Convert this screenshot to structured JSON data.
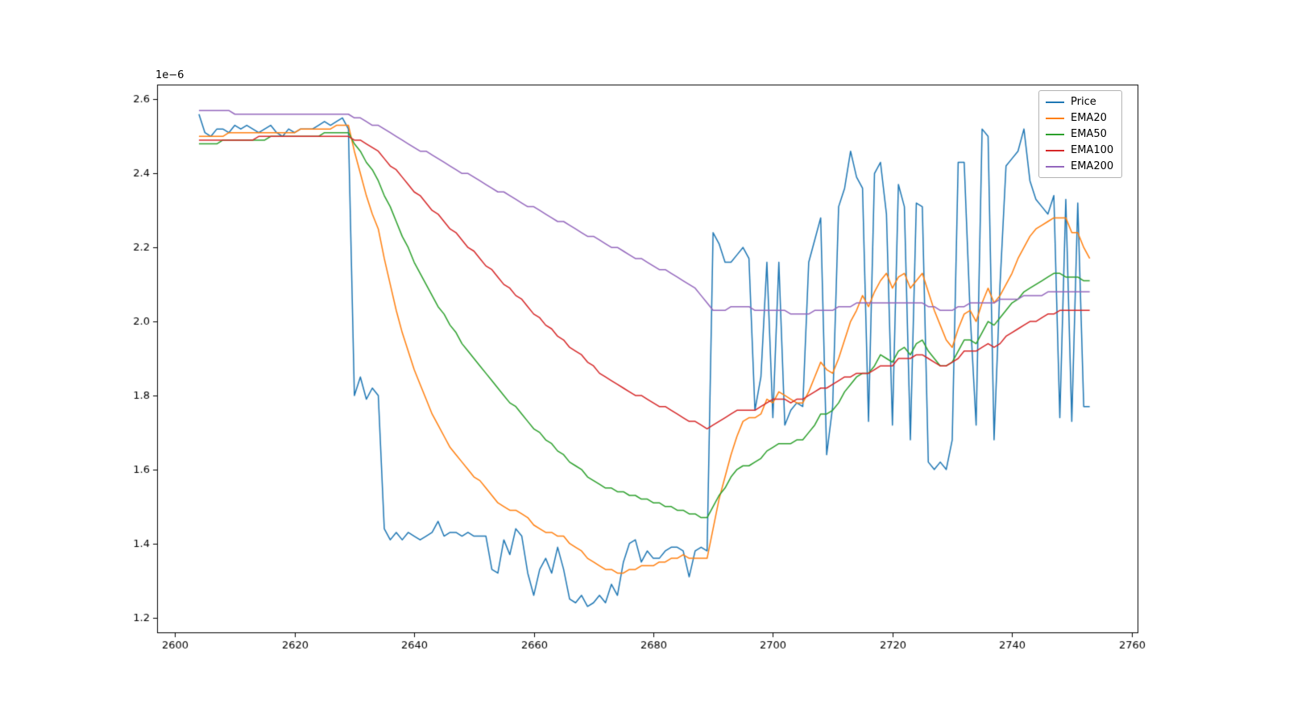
{
  "figure": {
    "background": "#ffffff"
  },
  "chart_data": {
    "type": "line",
    "title": "",
    "xlabel": "",
    "ylabel": "",
    "offset_text": "1e−6",
    "grid": false,
    "legend_position": "upper right",
    "legend_labels": [
      "Price",
      "EMA20",
      "EMA50",
      "EMA100",
      "EMA200"
    ],
    "x_start": 2604,
    "x_step": 1,
    "xlim": [
      2597,
      2761
    ],
    "ylim": [
      1.16,
      2.64
    ],
    "x_ticks": [
      2600,
      2620,
      2640,
      2660,
      2680,
      2700,
      2720,
      2740,
      2760
    ],
    "y_ticks": [
      1.2,
      1.4,
      1.6,
      1.8,
      2.0,
      2.2,
      2.4,
      2.6
    ],
    "y_scale_note": "values are ×1e-6",
    "series": [
      {
        "name": "Price",
        "color": "#1f77b4",
        "values": [
          2.56,
          2.51,
          2.5,
          2.52,
          2.52,
          2.51,
          2.53,
          2.52,
          2.53,
          2.52,
          2.51,
          2.52,
          2.53,
          2.51,
          2.5,
          2.52,
          2.51,
          2.52,
          2.52,
          2.52,
          2.53,
          2.54,
          2.53,
          2.54,
          2.55,
          2.52,
          1.8,
          1.85,
          1.79,
          1.82,
          1.8,
          1.44,
          1.41,
          1.43,
          1.41,
          1.43,
          1.42,
          1.41,
          1.42,
          1.43,
          1.46,
          1.42,
          1.43,
          1.43,
          1.42,
          1.43,
          1.42,
          1.42,
          1.42,
          1.33,
          1.32,
          1.41,
          1.37,
          1.44,
          1.42,
          1.32,
          1.26,
          1.33,
          1.36,
          1.32,
          1.39,
          1.33,
          1.25,
          1.24,
          1.26,
          1.23,
          1.24,
          1.26,
          1.24,
          1.29,
          1.26,
          1.35,
          1.4,
          1.41,
          1.35,
          1.38,
          1.36,
          1.36,
          1.38,
          1.39,
          1.39,
          1.38,
          1.31,
          1.38,
          1.39,
          1.38,
          2.24,
          2.21,
          2.16,
          2.16,
          2.18,
          2.2,
          2.17,
          1.76,
          1.85,
          2.16,
          1.74,
          2.16,
          1.72,
          1.76,
          1.78,
          1.77,
          2.16,
          2.22,
          2.28,
          1.64,
          1.77,
          2.31,
          2.36,
          2.46,
          2.39,
          2.36,
          1.73,
          2.4,
          2.43,
          2.29,
          1.72,
          2.37,
          2.31,
          1.68,
          2.32,
          2.31,
          1.62,
          1.6,
          1.62,
          1.6,
          1.68,
          2.43,
          2.43,
          2.02,
          1.72,
          2.52,
          2.5,
          1.68,
          2.1,
          2.42,
          2.44,
          2.46,
          2.52,
          2.38,
          2.33,
          2.31,
          2.29,
          2.34,
          1.74,
          2.33,
          1.73,
          2.32,
          1.77,
          1.77
        ]
      },
      {
        "name": "EMA20",
        "color": "#ff7f0e",
        "values": [
          2.5,
          2.5,
          2.5,
          2.5,
          2.5,
          2.51,
          2.51,
          2.51,
          2.51,
          2.51,
          2.51,
          2.51,
          2.51,
          2.51,
          2.51,
          2.51,
          2.51,
          2.52,
          2.52,
          2.52,
          2.52,
          2.52,
          2.52,
          2.53,
          2.53,
          2.53,
          2.46,
          2.4,
          2.34,
          2.29,
          2.25,
          2.17,
          2.1,
          2.03,
          1.97,
          1.92,
          1.87,
          1.83,
          1.79,
          1.75,
          1.72,
          1.69,
          1.66,
          1.64,
          1.62,
          1.6,
          1.58,
          1.57,
          1.55,
          1.53,
          1.51,
          1.5,
          1.49,
          1.49,
          1.48,
          1.47,
          1.45,
          1.44,
          1.43,
          1.43,
          1.42,
          1.42,
          1.4,
          1.39,
          1.38,
          1.36,
          1.35,
          1.34,
          1.33,
          1.33,
          1.32,
          1.32,
          1.33,
          1.33,
          1.34,
          1.34,
          1.34,
          1.35,
          1.35,
          1.36,
          1.36,
          1.37,
          1.36,
          1.36,
          1.36,
          1.36,
          1.44,
          1.52,
          1.58,
          1.64,
          1.69,
          1.73,
          1.74,
          1.74,
          1.75,
          1.79,
          1.78,
          1.81,
          1.8,
          1.79,
          1.78,
          1.78,
          1.81,
          1.85,
          1.89,
          1.87,
          1.86,
          1.9,
          1.95,
          2.0,
          2.03,
          2.07,
          2.04,
          2.08,
          2.11,
          2.13,
          2.09,
          2.12,
          2.13,
          2.09,
          2.11,
          2.13,
          2.08,
          2.03,
          1.99,
          1.95,
          1.93,
          1.98,
          2.02,
          2.03,
          2.0,
          2.05,
          2.09,
          2.05,
          2.07,
          2.1,
          2.13,
          2.17,
          2.2,
          2.23,
          2.25,
          2.26,
          2.27,
          2.28,
          2.28,
          2.28,
          2.24,
          2.24,
          2.2,
          2.17
        ]
      },
      {
        "name": "EMA50",
        "color": "#2ca02c",
        "values": [
          2.48,
          2.48,
          2.48,
          2.48,
          2.49,
          2.49,
          2.49,
          2.49,
          2.49,
          2.49,
          2.49,
          2.49,
          2.5,
          2.5,
          2.5,
          2.5,
          2.5,
          2.5,
          2.5,
          2.5,
          2.5,
          2.51,
          2.51,
          2.51,
          2.51,
          2.51,
          2.48,
          2.46,
          2.43,
          2.41,
          2.38,
          2.34,
          2.31,
          2.27,
          2.23,
          2.2,
          2.16,
          2.13,
          2.1,
          2.07,
          2.04,
          2.02,
          1.99,
          1.97,
          1.94,
          1.92,
          1.9,
          1.88,
          1.86,
          1.84,
          1.82,
          1.8,
          1.78,
          1.77,
          1.75,
          1.73,
          1.71,
          1.7,
          1.68,
          1.67,
          1.65,
          1.64,
          1.62,
          1.61,
          1.6,
          1.58,
          1.57,
          1.56,
          1.55,
          1.55,
          1.54,
          1.54,
          1.53,
          1.53,
          1.52,
          1.52,
          1.51,
          1.51,
          1.5,
          1.5,
          1.49,
          1.49,
          1.48,
          1.48,
          1.47,
          1.47,
          1.5,
          1.53,
          1.55,
          1.58,
          1.6,
          1.61,
          1.61,
          1.62,
          1.63,
          1.65,
          1.66,
          1.67,
          1.67,
          1.67,
          1.68,
          1.68,
          1.7,
          1.72,
          1.75,
          1.75,
          1.76,
          1.78,
          1.81,
          1.83,
          1.85,
          1.86,
          1.86,
          1.88,
          1.91,
          1.9,
          1.89,
          1.92,
          1.93,
          1.91,
          1.94,
          1.95,
          1.92,
          1.9,
          1.88,
          1.88,
          1.89,
          1.92,
          1.95,
          1.95,
          1.94,
          1.97,
          2.0,
          1.99,
          2.01,
          2.03,
          2.05,
          2.06,
          2.08,
          2.09,
          2.1,
          2.11,
          2.12,
          2.13,
          2.13,
          2.12,
          2.12,
          2.12,
          2.11,
          2.11
        ]
      },
      {
        "name": "EMA100",
        "color": "#d62728",
        "values": [
          2.49,
          2.49,
          2.49,
          2.49,
          2.49,
          2.49,
          2.49,
          2.49,
          2.49,
          2.49,
          2.5,
          2.5,
          2.5,
          2.5,
          2.5,
          2.5,
          2.5,
          2.5,
          2.5,
          2.5,
          2.5,
          2.5,
          2.5,
          2.5,
          2.5,
          2.5,
          2.49,
          2.49,
          2.48,
          2.47,
          2.46,
          2.44,
          2.42,
          2.41,
          2.39,
          2.37,
          2.35,
          2.34,
          2.32,
          2.3,
          2.29,
          2.27,
          2.25,
          2.24,
          2.22,
          2.2,
          2.19,
          2.17,
          2.15,
          2.14,
          2.12,
          2.1,
          2.09,
          2.07,
          2.06,
          2.04,
          2.02,
          2.01,
          1.99,
          1.98,
          1.96,
          1.95,
          1.93,
          1.92,
          1.91,
          1.89,
          1.88,
          1.86,
          1.85,
          1.84,
          1.83,
          1.82,
          1.81,
          1.8,
          1.8,
          1.79,
          1.78,
          1.77,
          1.77,
          1.76,
          1.75,
          1.74,
          1.73,
          1.73,
          1.72,
          1.71,
          1.72,
          1.73,
          1.74,
          1.75,
          1.76,
          1.76,
          1.76,
          1.76,
          1.77,
          1.78,
          1.79,
          1.79,
          1.79,
          1.78,
          1.79,
          1.79,
          1.8,
          1.81,
          1.82,
          1.82,
          1.83,
          1.84,
          1.85,
          1.85,
          1.86,
          1.86,
          1.86,
          1.87,
          1.88,
          1.88,
          1.88,
          1.9,
          1.9,
          1.9,
          1.91,
          1.91,
          1.9,
          1.89,
          1.88,
          1.88,
          1.89,
          1.9,
          1.92,
          1.92,
          1.92,
          1.93,
          1.94,
          1.93,
          1.94,
          1.96,
          1.97,
          1.98,
          1.99,
          2.0,
          2.0,
          2.01,
          2.02,
          2.02,
          2.03,
          2.03,
          2.03,
          2.03,
          2.03,
          2.03
        ]
      },
      {
        "name": "EMA200",
        "color": "#9467bd",
        "values": [
          2.57,
          2.57,
          2.57,
          2.57,
          2.57,
          2.57,
          2.56,
          2.56,
          2.56,
          2.56,
          2.56,
          2.56,
          2.56,
          2.56,
          2.56,
          2.56,
          2.56,
          2.56,
          2.56,
          2.56,
          2.56,
          2.56,
          2.56,
          2.56,
          2.56,
          2.56,
          2.55,
          2.55,
          2.54,
          2.53,
          2.53,
          2.52,
          2.51,
          2.5,
          2.49,
          2.48,
          2.47,
          2.46,
          2.46,
          2.45,
          2.44,
          2.43,
          2.42,
          2.41,
          2.4,
          2.4,
          2.39,
          2.38,
          2.37,
          2.36,
          2.35,
          2.35,
          2.34,
          2.33,
          2.32,
          2.31,
          2.31,
          2.3,
          2.29,
          2.28,
          2.27,
          2.27,
          2.26,
          2.25,
          2.24,
          2.23,
          2.23,
          2.22,
          2.21,
          2.2,
          2.2,
          2.19,
          2.18,
          2.17,
          2.17,
          2.16,
          2.15,
          2.14,
          2.14,
          2.13,
          2.12,
          2.11,
          2.1,
          2.09,
          2.07,
          2.05,
          2.03,
          2.03,
          2.03,
          2.04,
          2.04,
          2.04,
          2.04,
          2.03,
          2.03,
          2.03,
          2.03,
          2.03,
          2.03,
          2.02,
          2.02,
          2.02,
          2.02,
          2.03,
          2.03,
          2.03,
          2.03,
          2.04,
          2.04,
          2.04,
          2.05,
          2.05,
          2.05,
          2.05,
          2.05,
          2.05,
          2.05,
          2.05,
          2.05,
          2.05,
          2.05,
          2.05,
          2.04,
          2.04,
          2.03,
          2.03,
          2.03,
          2.04,
          2.04,
          2.05,
          2.05,
          2.05,
          2.05,
          2.05,
          2.06,
          2.06,
          2.06,
          2.06,
          2.07,
          2.07,
          2.07,
          2.07,
          2.08,
          2.08,
          2.08,
          2.08,
          2.08,
          2.08,
          2.08,
          2.08
        ]
      }
    ]
  }
}
